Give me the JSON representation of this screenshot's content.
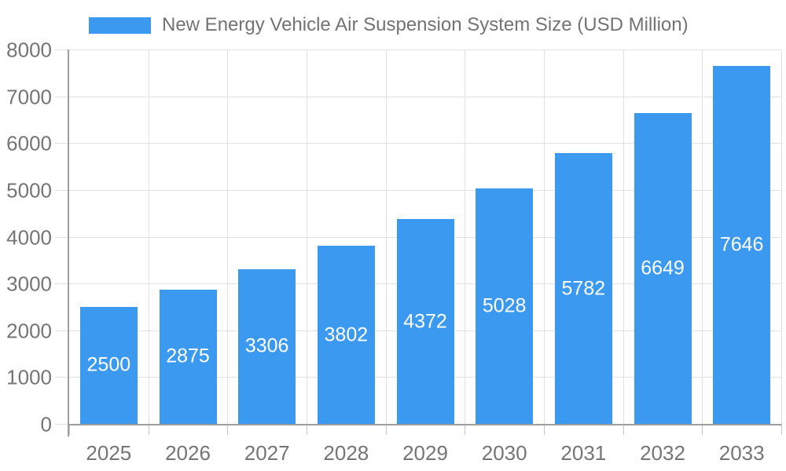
{
  "legend": {
    "label": "New Energy Vehicle Air Suspension System Size (USD Million)"
  },
  "chart_data": {
    "type": "bar",
    "title": "New Energy Vehicle Air Suspension System Size (USD Million)",
    "categories": [
      "2025",
      "2026",
      "2027",
      "2028",
      "2029",
      "2030",
      "2031",
      "2032",
      "2033"
    ],
    "values": [
      2500,
      2875,
      3306,
      3802,
      4372,
      5028,
      5782,
      6649,
      7646
    ],
    "xlabel": "",
    "ylabel": "",
    "ylim": [
      0,
      8000
    ],
    "yticks": [
      0,
      1000,
      2000,
      3000,
      4000,
      5000,
      6000,
      7000,
      8000
    ],
    "grid": true,
    "legend_position": "top-left",
    "value_labels": "inside-center",
    "colors": {
      "bar": "#3B99F0",
      "value_label": "#ffffff",
      "axis_label": "#757575",
      "legend_label": "#737373",
      "gridline": "#e2e2e2",
      "axis_line": "#9e9e9e",
      "background": "#ffffff"
    }
  }
}
